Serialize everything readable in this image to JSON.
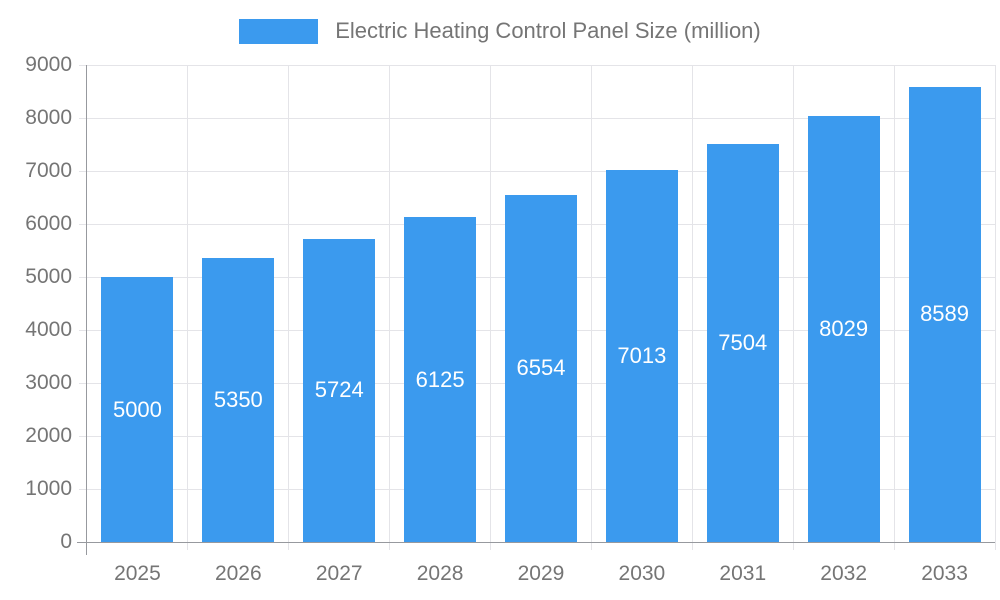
{
  "legend": {
    "label": "Electric Heating Control Panel Size (million)"
  },
  "chart_data": {
    "type": "bar",
    "title": "Electric Heating Control Panel Size (million)",
    "categories": [
      "2025",
      "2026",
      "2027",
      "2028",
      "2029",
      "2030",
      "2031",
      "2032",
      "2033"
    ],
    "values": [
      5000,
      5350,
      5724,
      6125,
      6554,
      7013,
      7504,
      8029,
      8589
    ],
    "value_labels": [
      "5000",
      "5350",
      "5724",
      "6125",
      "6554",
      "7013",
      "7504",
      "8029",
      "8589"
    ],
    "xlabel": "",
    "ylabel": "",
    "ylim": [
      0,
      9000
    ],
    "yticks": [
      0,
      1000,
      2000,
      3000,
      4000,
      5000,
      6000,
      7000,
      8000,
      9000
    ],
    "grid": true,
    "legend_position": "top-center",
    "value_label_position": "inside-center"
  },
  "colors": {
    "bar": "#3B9AEE",
    "grid": "#E4E4E8",
    "axis": "#97999E",
    "text": "#757575",
    "value_label": "#FFFFFF",
    "background": "#FFFFFF"
  }
}
